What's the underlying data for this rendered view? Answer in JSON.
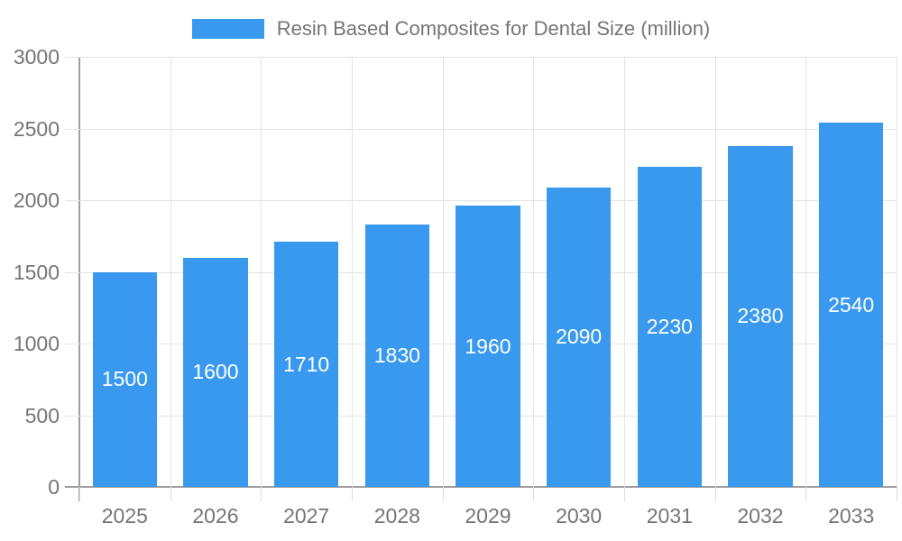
{
  "legend": {
    "label": "Resin Based Composites for Dental Size (million)",
    "swatch_color": "#3999EE"
  },
  "chart_data": {
    "type": "bar",
    "title": "Resin Based Composites for Dental Size (million)",
    "categories": [
      "2025",
      "2026",
      "2027",
      "2028",
      "2029",
      "2030",
      "2031",
      "2032",
      "2033"
    ],
    "values": [
      1500,
      1600,
      1710,
      1830,
      1960,
      2090,
      2230,
      2380,
      2540
    ],
    "series": [
      {
        "name": "Resin Based Composites for Dental Size (million)",
        "values": [
          1500,
          1600,
          1710,
          1830,
          1960,
          2090,
          2230,
          2380,
          2540
        ]
      }
    ],
    "xlabel": "",
    "ylabel": "",
    "ylim": [
      0,
      3000
    ],
    "yticks": [
      0,
      500,
      1000,
      1500,
      2000,
      2500,
      3000
    ],
    "grid": true,
    "legend_position": "top",
    "value_labels": "inside-center",
    "colors": {
      "bar": "#3999EE",
      "bar_value_text": "#FFFFFF",
      "axis_text": "#757575",
      "gridline": "#E3E3E3",
      "axis_line": "#9E9E9E",
      "tick": "#DCDCDC",
      "background": "#FFFFFF"
    }
  }
}
